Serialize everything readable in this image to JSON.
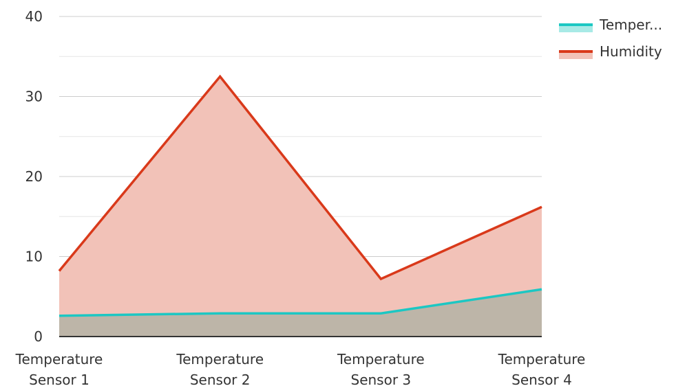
{
  "chart_data": {
    "type": "area",
    "categories": [
      [
        "Temperature",
        "Sensor 1"
      ],
      [
        "Temperature",
        "Sensor 2"
      ],
      [
        "Temperature",
        "Sensor 3"
      ],
      [
        "Temperature",
        "Sensor 4"
      ]
    ],
    "series": [
      {
        "name": "Temper...",
        "values": [
          2.6,
          2.9,
          2.9,
          5.9
        ],
        "line_color": "#1cc7c3",
        "fill_color": "#a8eae6"
      },
      {
        "name": "Humidity",
        "values": [
          8.2,
          32.5,
          7.2,
          16.2
        ],
        "line_color": "#d9391a",
        "fill_color": "#f2c2b8"
      }
    ],
    "overlap_fill_color": "#bdb5a8",
    "y_ticks": [
      "0",
      "10",
      "20",
      "30",
      "40"
    ],
    "ylim": [
      0,
      40
    ],
    "minor_grid_step": 5,
    "grid": true,
    "legend_position": "top-right",
    "title": "",
    "xlabel": "",
    "ylabel": ""
  }
}
